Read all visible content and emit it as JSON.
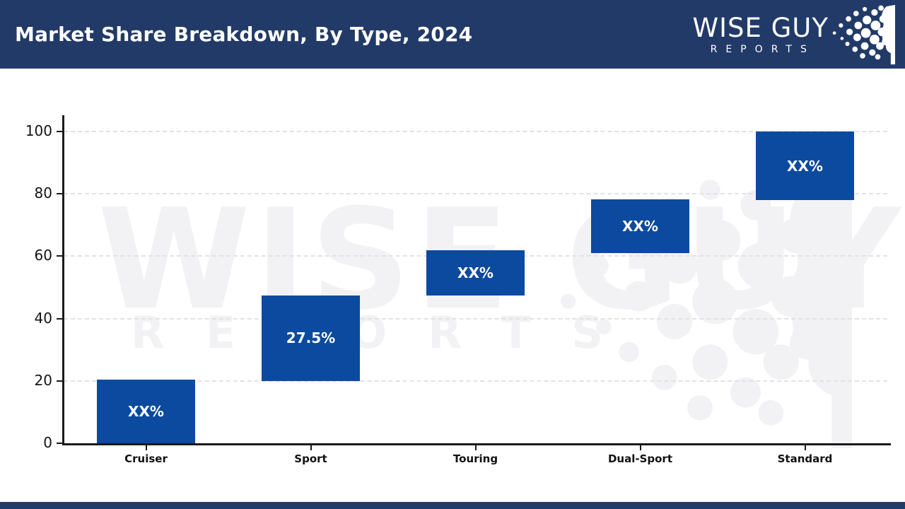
{
  "header": {
    "title": "Market Share Breakdown, By Type, 2024",
    "background_color": "#223a68"
  },
  "logo": {
    "line1": "WISE GUY",
    "line2": "REPORTS"
  },
  "watermark": {
    "line1": "WISE GUY",
    "line2": "REPORTS"
  },
  "chart_data": {
    "type": "bar",
    "subtype": "waterfall",
    "title": "Market Share Breakdown, By Type, 2024",
    "categories": [
      "Cruiser",
      "Sport",
      "Touring",
      "Dual-Sport",
      "Standard"
    ],
    "bars": [
      {
        "category": "Cruiser",
        "base": 0,
        "top": 20.5,
        "label": "XX%"
      },
      {
        "category": "Sport",
        "base": 20,
        "top": 47.5,
        "label": "27.5%"
      },
      {
        "category": "Touring",
        "base": 47.5,
        "top": 62,
        "label": "XX%"
      },
      {
        "category": "Dual-Sport",
        "base": 61,
        "top": 78.2,
        "label": "XX%"
      },
      {
        "category": "Standard",
        "base": 78,
        "top": 100,
        "label": "XX%"
      }
    ],
    "yticks": [
      0,
      20,
      40,
      60,
      80,
      100
    ],
    "ylim": [
      0,
      105
    ],
    "xlabel": "",
    "ylabel": "",
    "bar_color": "#0b4a9e",
    "grid": "horizontal-dashed",
    "legend": "none"
  },
  "footer": {
    "color": "#223a68"
  }
}
